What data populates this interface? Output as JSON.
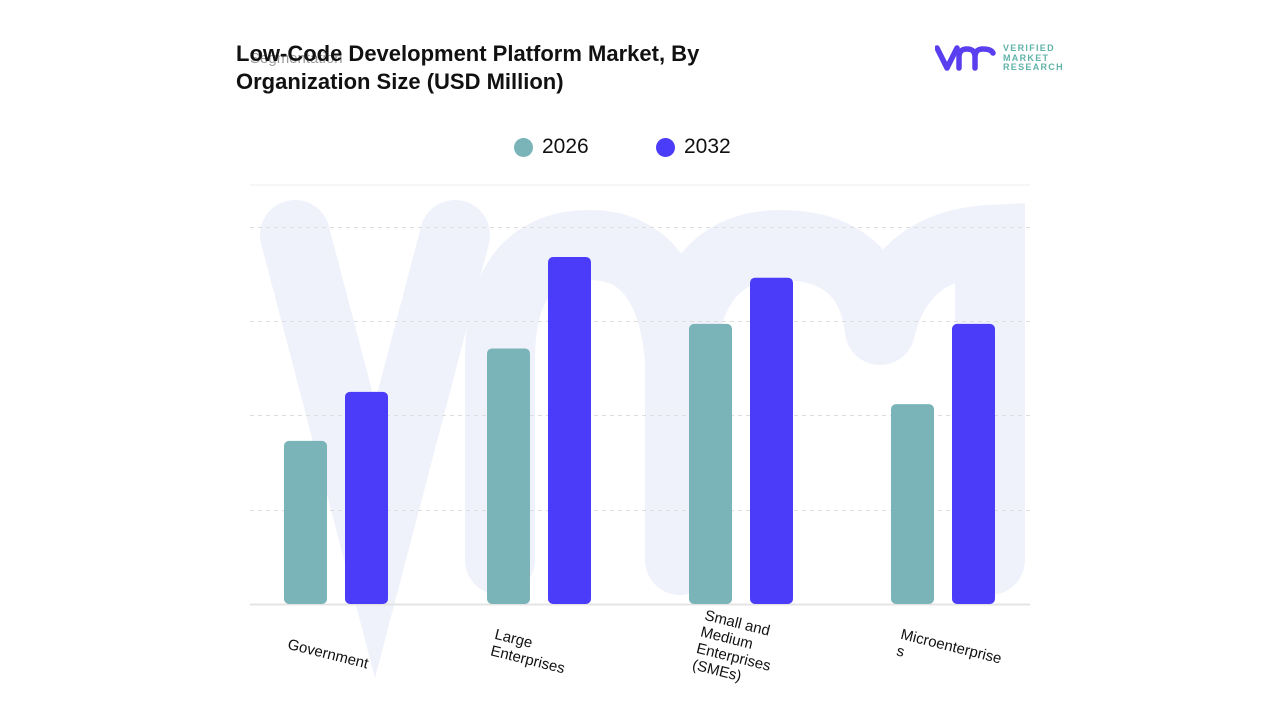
{
  "header": {
    "title": "Low-Code Development Platform Market, By Organization Size (USD Million)",
    "subtitle_ghost": "Segmentation"
  },
  "logo": {
    "line1": "VERIFIED",
    "line2": "MARKET",
    "line3": "RESEARCH",
    "brand_color": "#5a3ff0",
    "text_color": "#5fb3a9"
  },
  "chart_data": {
    "type": "bar",
    "title": "Low-Code Development Platform Market, By Organization Size (USD Million)",
    "xlabel": "",
    "ylabel": "",
    "categories": [
      "Government",
      "Large Enterprises",
      "Small and Medium Enterprises (SMEs)",
      "Microenterprises"
    ],
    "category_labels_wrapped": [
      [
        "Government"
      ],
      [
        "Large",
        "Enterprises"
      ],
      [
        "Small and",
        "Medium",
        "Enterprises",
        "(SMEs)"
      ],
      [
        "Microenterprise",
        "s"
      ]
    ],
    "series": [
      {
        "name": "2026",
        "color": "#7ab4b8",
        "values": [
          1.73,
          2.71,
          2.97,
          2.12
        ]
      },
      {
        "name": "2032",
        "color": "#4b3cfa",
        "values": [
          2.25,
          3.68,
          3.46,
          2.97
        ]
      }
    ],
    "ylim": [
      0,
      4.5
    ],
    "y_gridlines": [
      1,
      2,
      3,
      4
    ],
    "y_tick_labels_shown": false,
    "units_note": "relative units (no y-axis values shown)",
    "grid": true,
    "legend_position": "top-center"
  }
}
